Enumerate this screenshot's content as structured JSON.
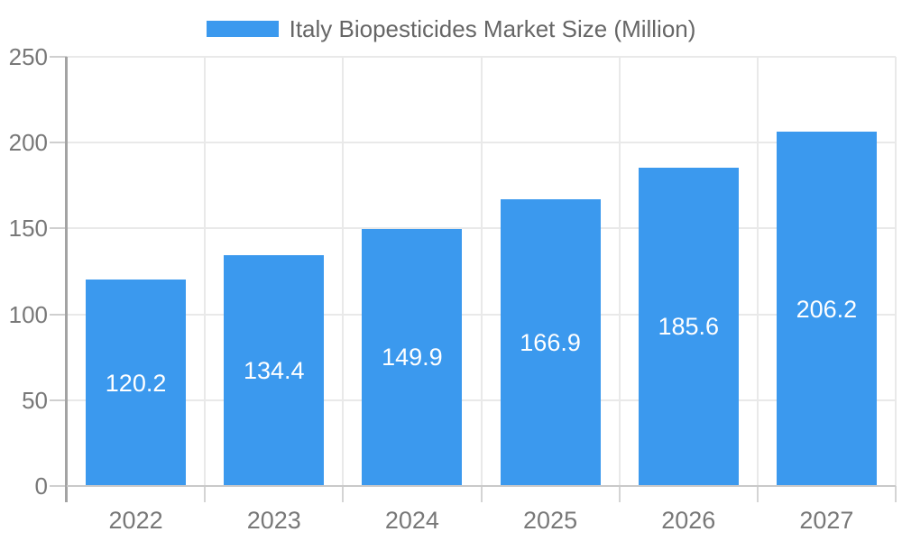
{
  "legend": {
    "label": "Italy Biopesticides Market Size (Million)"
  },
  "colors": {
    "bar": "#3b99ee",
    "bar_label_text": "#ffffff",
    "axis_text": "#787878",
    "legend_text": "#666666",
    "y_axis_line": "#a3a3a3",
    "x_axis_line": "#c9c9c9",
    "gridline": "#e9e9e9",
    "background": "#ffffff"
  },
  "chart_data": {
    "type": "bar",
    "title": "Italy Biopesticides Market Size (Million)",
    "categories": [
      "2022",
      "2023",
      "2024",
      "2025",
      "2026",
      "2027"
    ],
    "values": [
      120.2,
      134.4,
      149.9,
      166.9,
      185.6,
      206.2
    ],
    "value_labels": [
      "120.2",
      "134.4",
      "149.9",
      "166.9",
      "185.6",
      "206.2"
    ],
    "xlabel": "",
    "ylabel": "",
    "ylim": [
      0,
      250
    ],
    "yticks": [
      "0",
      "50",
      "100",
      "150",
      "200",
      "250"
    ],
    "grid": true,
    "legend_position": "top-center",
    "value_label_position": "inside-middle",
    "series": [
      {
        "name": "Italy Biopesticides Market Size (Million)",
        "values": [
          120.2,
          134.4,
          149.9,
          166.9,
          185.6,
          206.2
        ]
      }
    ]
  }
}
